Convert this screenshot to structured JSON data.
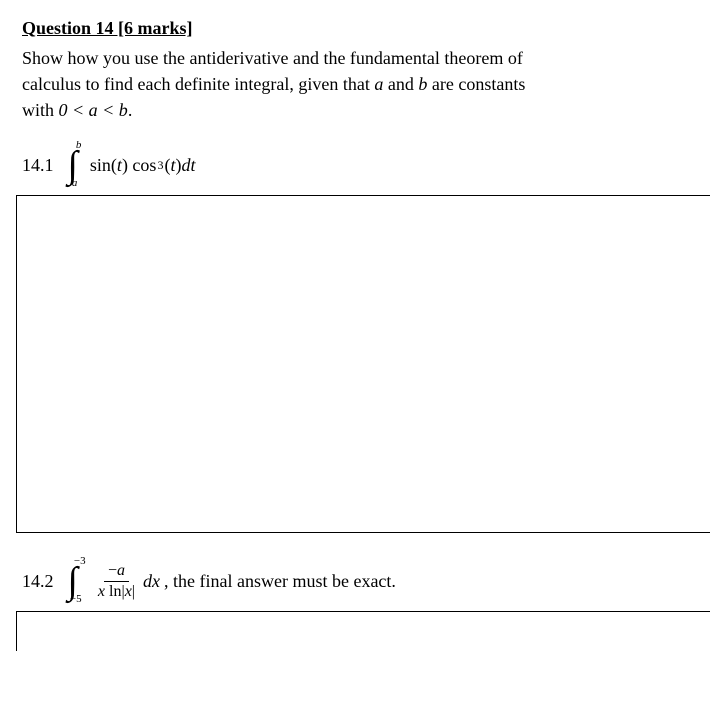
{
  "heading": "Question 14 [6 marks]",
  "instructions_l1": "Show how you use the antiderivative and the fundamental theorem of",
  "instructions_l2_a": "calculus to find each definite integral, given that ",
  "instructions_l2_b": "a",
  "instructions_l2_c": "  and  ",
  "instructions_l2_d": "b",
  "instructions_l2_e": "  are constants",
  "instructions_l3_a": "with  ",
  "instructions_l3_b": "0 < a < b",
  "instructions_l3_c": ".",
  "q141": {
    "num": "14.1",
    "upper": "b",
    "lower": "a",
    "body_sin": "sin(",
    "body_t1": "t",
    "body_paren1": ") cos",
    "body_exp": "3",
    "body_paren2": "(",
    "body_t2": "t",
    "body_paren3": ")",
    "body_dt": "dt"
  },
  "q142": {
    "num": "14.2",
    "upper": "−3",
    "lower": "−5",
    "frac_num_a": "−",
    "frac_num_b": "a",
    "frac_den_a": "x",
    "frac_den_b": " ln|",
    "frac_den_c": "x",
    "frac_den_d": "|",
    "body_dx": "dx",
    "tail": ",  the final answer must be exact."
  },
  "colors": {
    "text": "#000000",
    "bg": "#ffffff",
    "border": "#000000"
  }
}
